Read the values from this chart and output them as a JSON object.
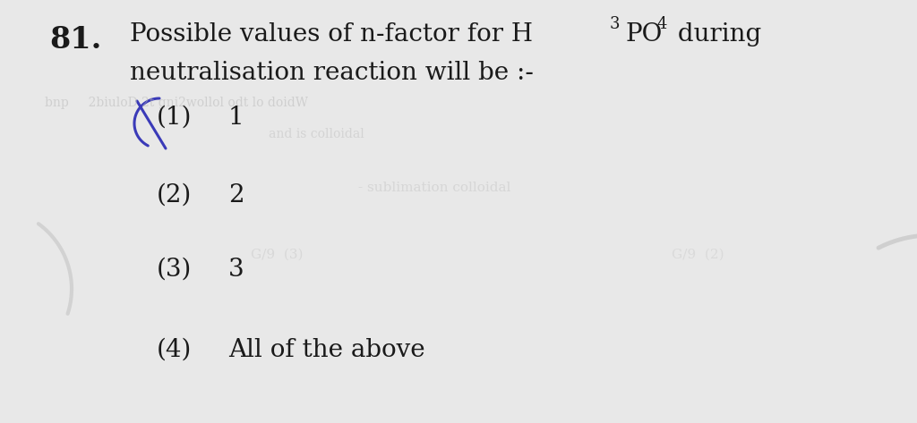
{
  "background_color": "#e8e8e8",
  "question_number": "81.",
  "question_line2": "neutralisation reaction will be :-",
  "option1_num": "(1)",
  "option1_val": "1",
  "option2_num": "(2)",
  "option2_val": "2",
  "option3_num": "(3)",
  "option3_val": "3",
  "option4_num": "(4)",
  "option4_val": "All of the above",
  "tick_color": "#3a3ab8",
  "text_color": "#1a1a1a",
  "font_size_q": 20,
  "font_size_num": 24,
  "font_size_opt": 20,
  "bleed_color": "#aaaaaa",
  "bleed_alpha": 0.45
}
